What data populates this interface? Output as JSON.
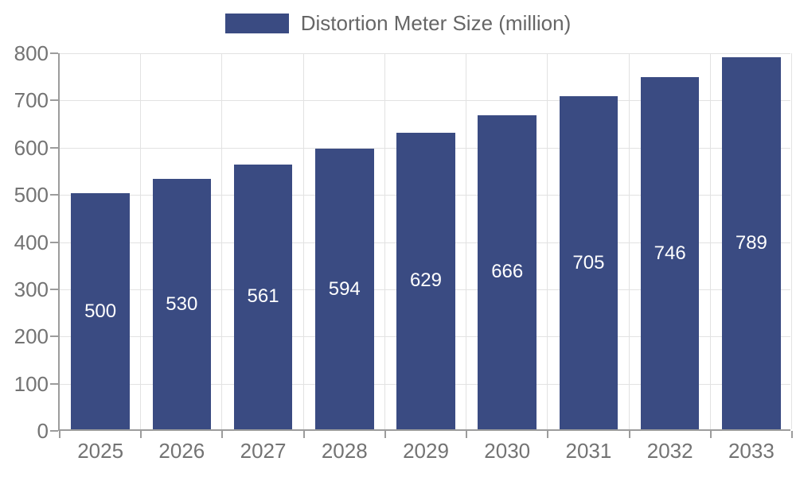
{
  "legend": {
    "label": "Distortion Meter Size (million)"
  },
  "colors": {
    "bar": "#3A4B82",
    "grid": "#e2e2e2",
    "axis": "#9c9c9c",
    "tick_label": "#737373",
    "legend_text": "#666666",
    "bar_label": "#ffffff",
    "background": "#ffffff"
  },
  "chart_data": {
    "type": "bar",
    "title": "",
    "xlabel": "",
    "ylabel": "",
    "categories": [
      "2025",
      "2026",
      "2027",
      "2028",
      "2029",
      "2030",
      "2031",
      "2032",
      "2033"
    ],
    "values": [
      500,
      530,
      561,
      594,
      629,
      666,
      705,
      746,
      789
    ],
    "series_name": "Distortion Meter Size (million)",
    "ylim": [
      0,
      800
    ],
    "yticks": [
      0,
      100,
      200,
      300,
      400,
      500,
      600,
      700,
      800
    ],
    "grid": true,
    "legend_position": "top-center",
    "value_label_position": "inside-middle"
  }
}
